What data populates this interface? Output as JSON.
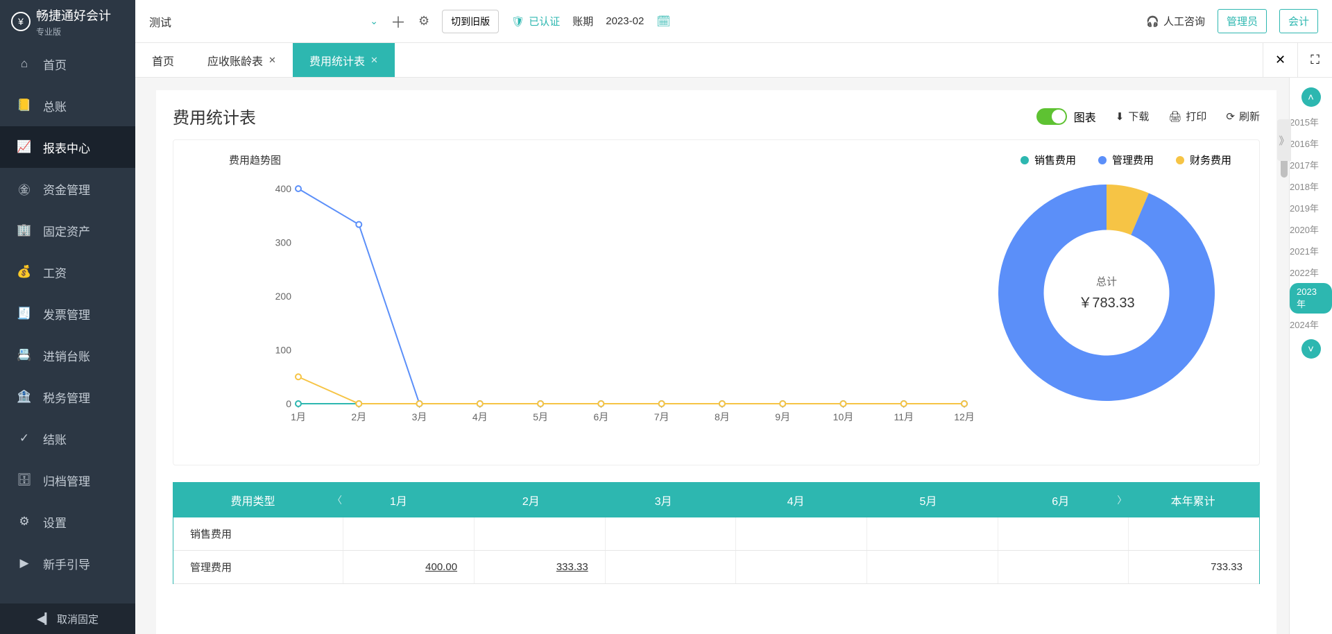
{
  "brand": {
    "name": "畅捷通好会计",
    "edition": "专业版"
  },
  "sidebar": {
    "items": [
      {
        "label": "首页"
      },
      {
        "label": "总账"
      },
      {
        "label": "报表中心"
      },
      {
        "label": "资金管理"
      },
      {
        "label": "固定资产"
      },
      {
        "label": "工资"
      },
      {
        "label": "发票管理"
      },
      {
        "label": "进销台账"
      },
      {
        "label": "税务管理"
      },
      {
        "label": "结账"
      },
      {
        "label": "归档管理"
      },
      {
        "label": "设置"
      },
      {
        "label": "新手引导"
      }
    ],
    "unpin": "取消固定"
  },
  "topbar": {
    "account": "测试",
    "switch_old": "切到旧版",
    "verified": "已认证",
    "period_label": "账期",
    "period_value": "2023-02",
    "support": "人工咨询",
    "roles": [
      "管理员",
      "会计"
    ]
  },
  "tabs": [
    {
      "label": "首页",
      "closable": false
    },
    {
      "label": "应收账龄表",
      "closable": true
    },
    {
      "label": "费用统计表",
      "closable": true,
      "active": true
    }
  ],
  "page": {
    "title": "费用统计表",
    "chart_toggle_label": "图表",
    "download": "下载",
    "print": "打印",
    "refresh": "刷新"
  },
  "chart": {
    "title": "费用趋势图",
    "type": "line",
    "x_labels": [
      "1月",
      "2月",
      "3月",
      "4月",
      "5月",
      "6月",
      "7月",
      "8月",
      "9月",
      "10月",
      "11月",
      "12月"
    ],
    "y_ticks": [
      0,
      100,
      200,
      300,
      400
    ],
    "ylim": [
      0,
      400
    ],
    "series": [
      {
        "name": "销售费用",
        "color": "#2db7b0",
        "values": [
          0,
          0,
          0,
          0,
          0,
          0,
          0,
          0,
          0,
          0,
          0,
          0
        ]
      },
      {
        "name": "管理费用",
        "color": "#5b8ff9",
        "values": [
          400,
          333.33,
          0,
          0,
          0,
          0,
          0,
          0,
          0,
          0,
          0,
          0
        ]
      },
      {
        "name": "财务费用",
        "color": "#f6c445",
        "values": [
          50,
          0,
          0,
          0,
          0,
          0,
          0,
          0,
          0,
          0,
          0,
          0
        ]
      }
    ],
    "marker_radius": 4,
    "line_width": 2,
    "axis_color": "#999",
    "text_color": "#666",
    "fontsize": 14
  },
  "donut": {
    "center_label": "总计",
    "center_value": "￥783.33",
    "inner_ratio": 0.58,
    "slices": [
      {
        "name": "财务费用",
        "value": 50,
        "color": "#f6c445"
      },
      {
        "name": "管理费用",
        "value": 733.33,
        "color": "#5b8ff9"
      },
      {
        "name": "销售费用",
        "value": 0,
        "color": "#2db7b0"
      }
    ]
  },
  "table": {
    "header_first": "费用类型",
    "months": [
      "1月",
      "2月",
      "3月",
      "4月",
      "5月",
      "6月"
    ],
    "header_last": "本年累计",
    "rows": [
      {
        "name": "销售费用",
        "cells": [
          "",
          "",
          "",
          "",
          "",
          ""
        ],
        "total": ""
      },
      {
        "name": "管理费用",
        "cells": [
          "400.00",
          "333.33",
          "",
          "",
          "",
          ""
        ],
        "total": "733.33",
        "link": true
      }
    ],
    "header_bg": "#2db7b0"
  },
  "rail": {
    "years": [
      "2015年",
      "2016年",
      "2017年",
      "2018年",
      "2019年",
      "2020年",
      "2021年",
      "2022年",
      "2023年",
      "2024年"
    ],
    "active": "2023年"
  }
}
